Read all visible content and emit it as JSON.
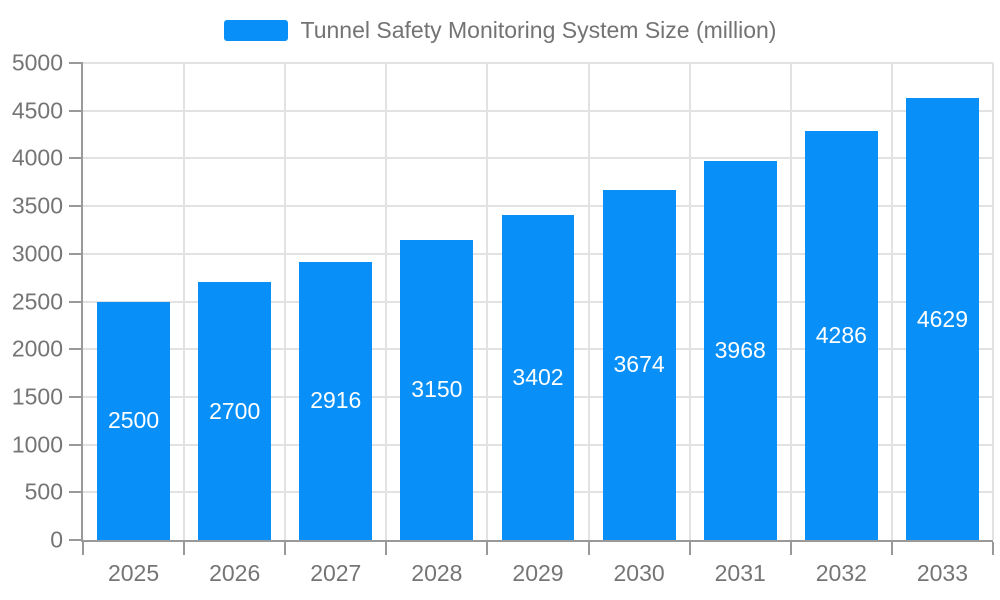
{
  "legend": {
    "label": "Tunnel Safety Monitoring System Size (million)"
  },
  "chart_data": {
    "type": "bar",
    "title": "Tunnel Safety Monitoring System Size (million)",
    "categories": [
      "2025",
      "2026",
      "2027",
      "2028",
      "2029",
      "2030",
      "2031",
      "2032",
      "2033"
    ],
    "values": [
      2500,
      2700,
      2916,
      3150,
      3402,
      3674,
      3968,
      4286,
      4629
    ],
    "series": [
      {
        "name": "Tunnel Safety Monitoring System Size (million)",
        "values": [
          2500,
          2700,
          2916,
          3150,
          3402,
          3674,
          3968,
          4286,
          4629
        ]
      }
    ],
    "xlabel": "",
    "ylabel": "",
    "ylim": [
      0,
      5000
    ],
    "ytick_step": 500,
    "yticks": [
      0,
      500,
      1000,
      1500,
      2000,
      2500,
      3000,
      3500,
      4000,
      4500,
      5000
    ],
    "grid": true,
    "legend_position": "top-center",
    "bar_label_position": "inside-center",
    "colors": {
      "bar": "#0890f8",
      "bar_label": "#ffffff",
      "axis": "#999999",
      "grid": "#e2e2e2",
      "tick_label": "#757575",
      "legend_text": "#737373",
      "background": "#ffffff"
    }
  }
}
